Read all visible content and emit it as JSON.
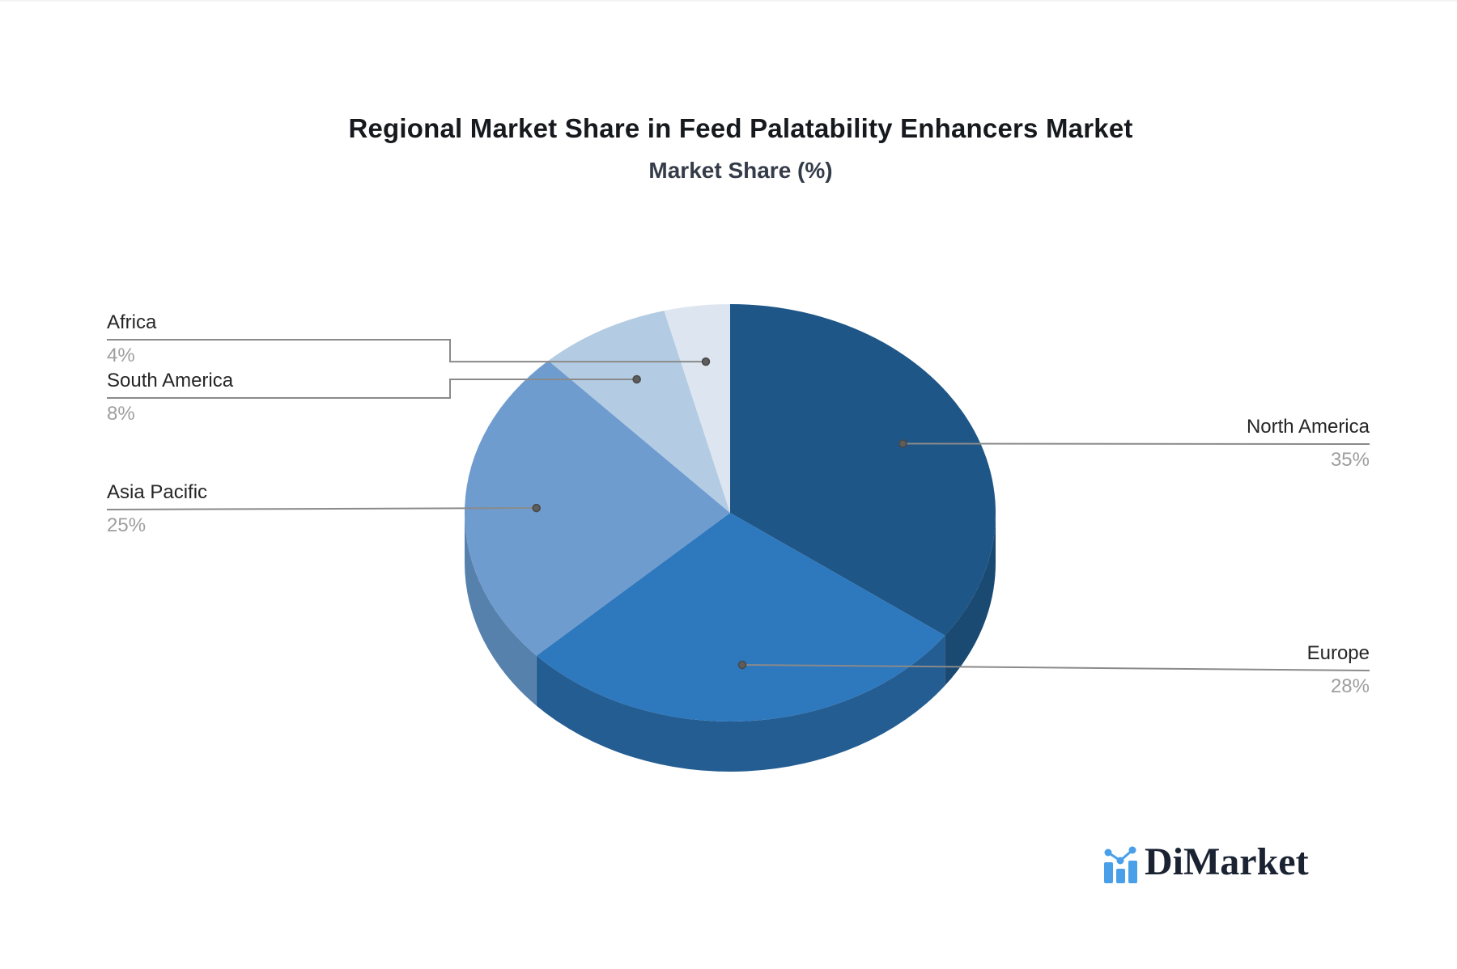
{
  "header": {
    "title": "Regional Market Share in Feed Palatability Enhancers Market",
    "subtitle": "Market Share (%)"
  },
  "chart_data": {
    "type": "pie",
    "style": "3d",
    "title": "Regional Market Share in Feed Palatability Enhancers Market",
    "subtitle": "Market Share (%)",
    "unit": "%",
    "start_angle_deg": 0,
    "direction": "clockwise",
    "legend": "callout-labels",
    "slices": [
      {
        "label": "North America",
        "value": 35,
        "display": "35%",
        "color": "#1e5687",
        "side_color": "#1a4a72",
        "callout_side": "right"
      },
      {
        "label": "Europe",
        "value": 28,
        "display": "28%",
        "color": "#2e78be",
        "side_color": "#235d92",
        "callout_side": "right"
      },
      {
        "label": "Asia Pacific",
        "value": 25,
        "display": "25%",
        "color": "#6f9cce",
        "side_color": "#5681ac",
        "callout_side": "left"
      },
      {
        "label": "South America",
        "value": 8,
        "display": "8%",
        "color": "#b3cbe3",
        "side_color": "#8aa6c4",
        "callout_side": "left"
      },
      {
        "label": "Africa",
        "value": 4,
        "display": "4%",
        "color": "#dde6f0",
        "side_color": "#aebfd3",
        "callout_side": "left"
      }
    ]
  },
  "branding": {
    "logo_text": "DiMarket",
    "logo_text_color": "#1b2333",
    "icon_name": "bar-line-chart-icon",
    "icon_color": "#4aa0e8"
  },
  "colors": {
    "label_text": "#262626",
    "value_text": "#9e9e9e",
    "leader_line": "#8a8a8a",
    "callout_dot": "#5d5d5d"
  }
}
